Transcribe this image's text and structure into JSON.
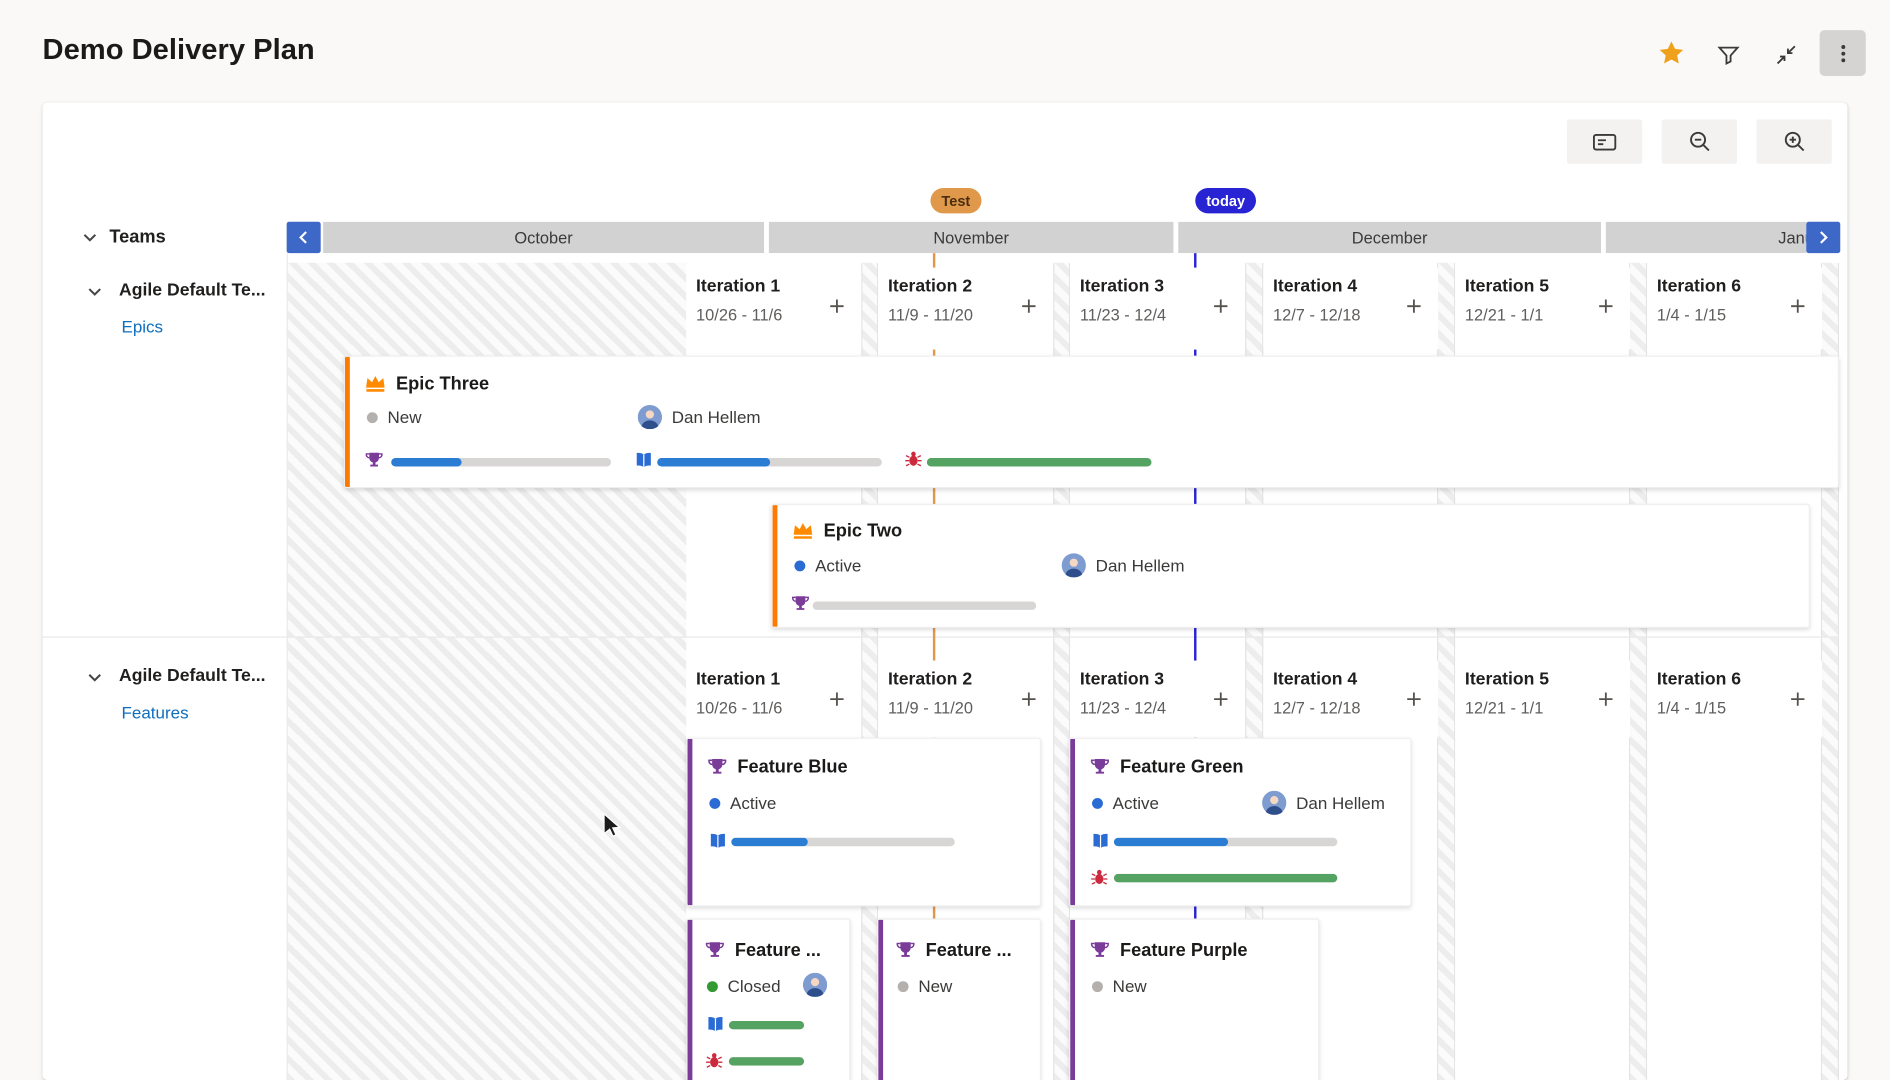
{
  "header": {
    "title": "Demo Delivery Plan",
    "favorite_icon": "star-filled",
    "filter_icon": "filter-funnel",
    "collapse_icon": "collapse-arrows",
    "more_icon": "more-options-vertical"
  },
  "toolbar": {
    "card_settings_icon": "card-field-settings",
    "zoom_out_icon": "magnifier-minus",
    "zoom_in_icon": "magnifier-plus"
  },
  "timeline": {
    "teams_label": "Teams",
    "add_icon": "plus",
    "months": [
      "October",
      "November",
      "December",
      "January"
    ],
    "markers": {
      "test": {
        "label": "Test",
        "bg": "#E0994B",
        "fg": "#4A2E10"
      },
      "today": {
        "label": "today",
        "bg": "#2823D3",
        "fg": "#FFFFFF"
      }
    },
    "iterations": [
      {
        "name": "Iteration 1",
        "dates": "10/26 - 11/6"
      },
      {
        "name": "Iteration 2",
        "dates": "11/9 - 11/20"
      },
      {
        "name": "Iteration 3",
        "dates": "11/23 - 12/4"
      },
      {
        "name": "Iteration 4",
        "dates": "12/7 - 12/18"
      },
      {
        "name": "Iteration 5",
        "dates": "12/21 - 1/1"
      },
      {
        "name": "Iteration 6",
        "dates": "1/4 - 1/15"
      }
    ]
  },
  "teams": [
    {
      "name": "Agile Default Te...",
      "backlog": "Epics"
    },
    {
      "name": "Agile Default Te...",
      "backlog": "Features"
    }
  ],
  "cards": {
    "epic_three": {
      "title": "Epic Three",
      "state": "New",
      "state_color": "#B3B0AD",
      "assignee": "Dan Hellem",
      "accent": "#FF7A00",
      "progress": [
        {
          "kind": "trophy",
          "percent": 32,
          "fill": "#2B7CD3"
        },
        {
          "kind": "book",
          "percent": 50,
          "fill": "#2B7CD3"
        },
        {
          "kind": "bug",
          "percent": 100,
          "fill": "#55A362"
        }
      ]
    },
    "epic_two": {
      "title": "Epic Two",
      "state": "Active",
      "state_color": "#2B6BD4",
      "assignee": "Dan Hellem",
      "accent": "#FF7A00",
      "progress": [
        {
          "kind": "trophy",
          "percent": 0,
          "fill": "#2B7CD3"
        }
      ]
    },
    "feature_blue": {
      "title": "Feature Blue",
      "state": "Active",
      "state_color": "#2B6BD4",
      "accent": "#7A3B99",
      "progress": [
        {
          "kind": "book",
          "percent": 34,
          "fill": "#2B7CD3"
        }
      ]
    },
    "feature_green": {
      "title": "Feature Green",
      "state": "Active",
      "state_color": "#2B6BD4",
      "assignee": "Dan Hellem",
      "accent": "#7A3B99",
      "progress": [
        {
          "kind": "book",
          "percent": 51,
          "fill": "#2B7CD3"
        },
        {
          "kind": "bug",
          "percent": 100,
          "fill": "#55A362"
        }
      ]
    },
    "feature_closed": {
      "title": "Feature ...",
      "state": "Closed",
      "state_color": "#339933",
      "accent": "#7A3B99",
      "progress": [
        {
          "kind": "book",
          "percent": 100,
          "fill": "#55A362"
        },
        {
          "kind": "bug",
          "percent": 100,
          "fill": "#55A362"
        }
      ]
    },
    "feature_new": {
      "title": "Feature ...",
      "state": "New",
      "state_color": "#B3B0AD",
      "accent": "#7A3B99",
      "progress": []
    },
    "feature_purple": {
      "title": "Feature Purple",
      "state": "New",
      "state_color": "#B3B0AD",
      "accent": "#7A3B99",
      "progress": []
    }
  },
  "colors": {
    "nav_button": "#3E68C8",
    "month_band": "#D2D2D2",
    "link": "#106EBE",
    "track": "#D8D6D4",
    "epic_accent": "#FF7A00",
    "feature_accent": "#7A3B99",
    "today_line": "#2823D3",
    "marker_line": "#E0994B",
    "favorite_star": "#EFA11C"
  }
}
